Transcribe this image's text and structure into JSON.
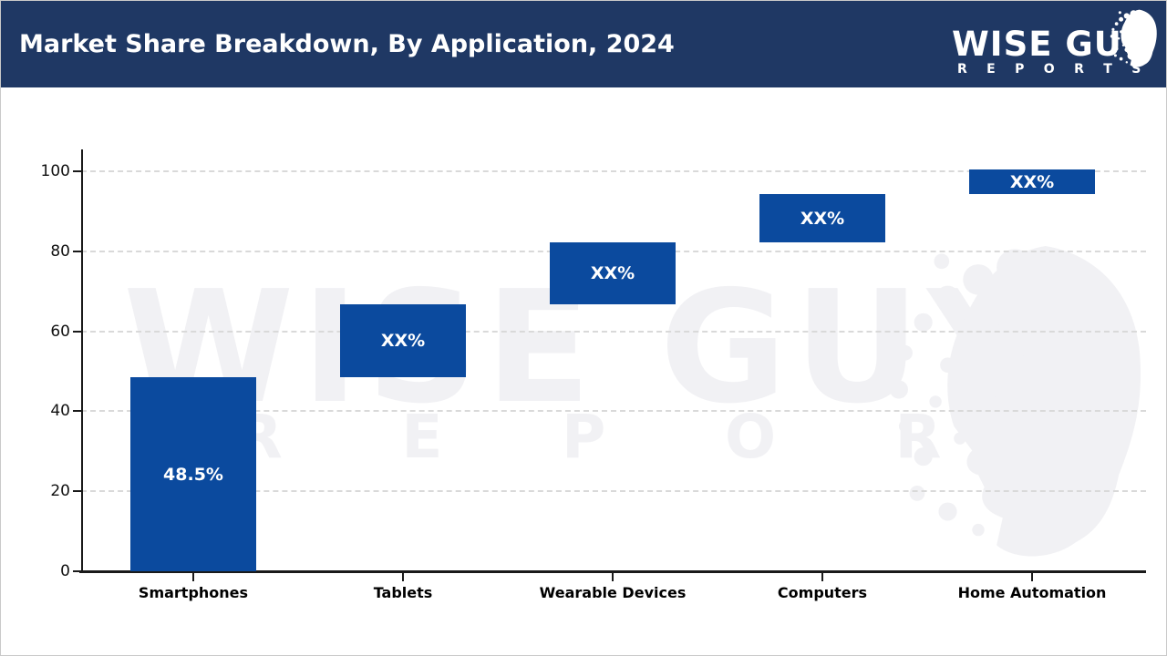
{
  "header": {
    "title": "Market Share Breakdown, By Application, 2024",
    "bg_color": "#1f3864",
    "logo": {
      "line1": "WISE GUY",
      "line2": "REPORTS"
    }
  },
  "watermark": {
    "line1": "WISE GUY",
    "line2": "REPORTS"
  },
  "chart_data": {
    "type": "bar",
    "variant": "waterfall",
    "title": "Market Share Breakdown, By Application, 2024",
    "categories": [
      "Smartphones",
      "Tablets",
      "Wearable Devices",
      "Computers",
      "Home Automation"
    ],
    "segments": [
      {
        "category": "Smartphones",
        "start": 0,
        "end": 48.5,
        "label": "48.5%"
      },
      {
        "category": "Tablets",
        "start": 48.5,
        "end": 66.8,
        "label": "XX%"
      },
      {
        "category": "Wearable Devices",
        "start": 66.8,
        "end": 82.3,
        "label": "XX%"
      },
      {
        "category": "Computers",
        "start": 82.3,
        "end": 94.2,
        "label": "XX%"
      },
      {
        "category": "Home Automation",
        "start": 94.2,
        "end": 100.4,
        "label": "XX%"
      }
    ],
    "xlabel": "",
    "ylabel": "",
    "yticks": [
      0,
      20,
      40,
      60,
      80,
      100
    ],
    "ylim": [
      0,
      105
    ],
    "bar_color": "#0b4a9e",
    "label_color": "#ffffff",
    "grid": "horizontal dashed",
    "legend": "none"
  }
}
